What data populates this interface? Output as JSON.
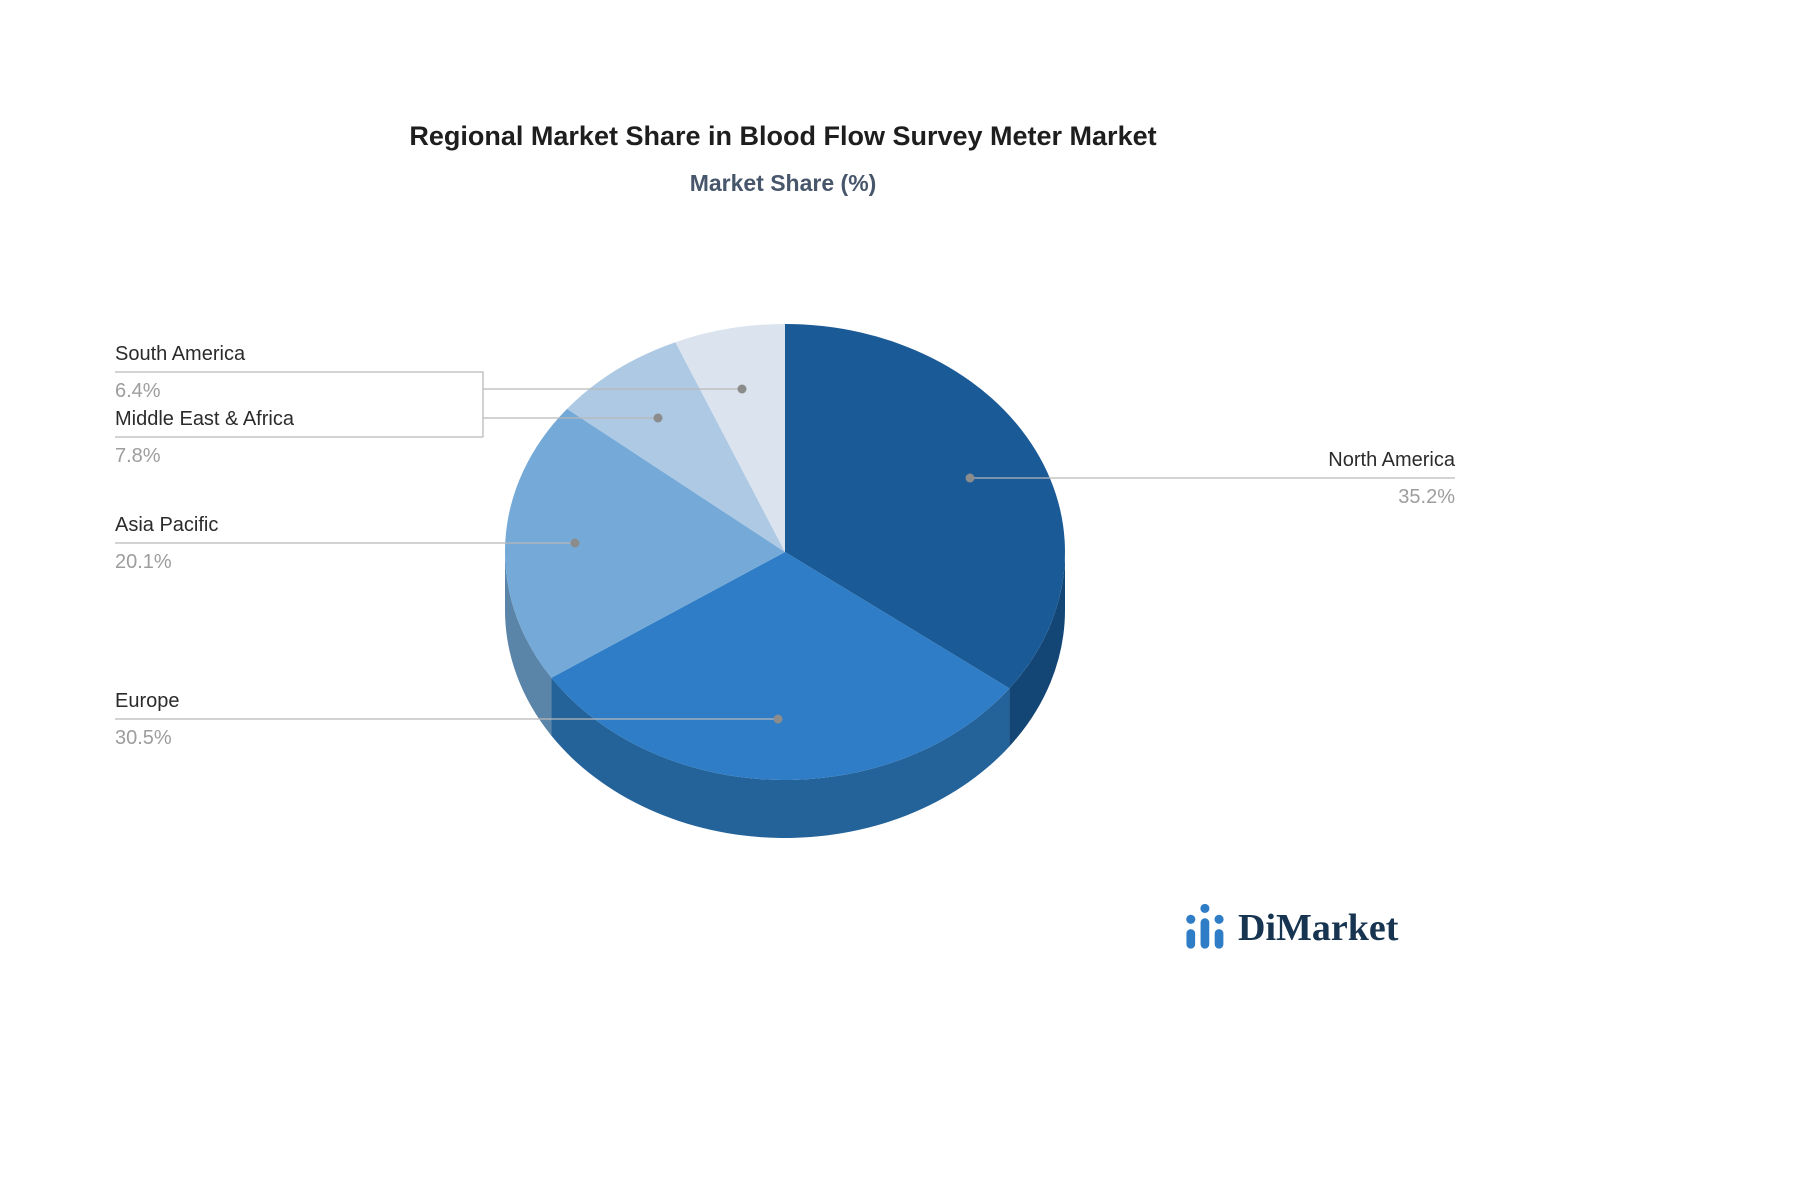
{
  "chart_data": {
    "type": "pie",
    "style": "3d",
    "title": "Regional Market Share in Blood Flow Survey Meter Market",
    "subtitle": "Market Share (%)",
    "unit": "%",
    "start_angle_deg": -90,
    "direction": "clockwise",
    "legend_position": "none",
    "label_layout": "outside-with-leader-lines",
    "slices": [
      {
        "label": "North America",
        "value": 35.2,
        "display": "35.2%",
        "color": "#1a5a96"
      },
      {
        "label": "Europe",
        "value": 30.5,
        "display": "30.5%",
        "color": "#2e7dc6"
      },
      {
        "label": "Asia Pacific",
        "value": 20.1,
        "display": "20.1%",
        "color": "#74a9d8"
      },
      {
        "label": "Middle East & Africa",
        "value": 7.8,
        "display": "7.8%",
        "color": "#aec9e4"
      },
      {
        "label": "South America",
        "value": 6.4,
        "display": "6.4%",
        "color": "#dbe3ee"
      }
    ]
  },
  "branding": {
    "logo_text": "DiMarket",
    "logo_text_color": "#173450",
    "icon_name": "bar-chart-icon",
    "icon_color": "#2e7dc6"
  }
}
